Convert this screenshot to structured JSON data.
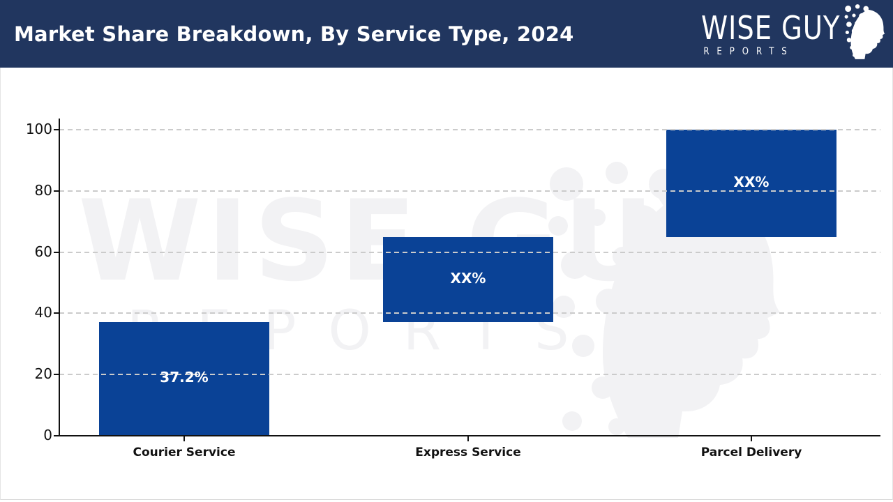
{
  "header": {
    "title": "Market Share Breakdown, By Service Type, 2024",
    "bg_color": "#21365F",
    "logo": {
      "wordmark": "WISE GUY",
      "subtitle": "REPORTS"
    }
  },
  "watermark": {
    "wordmark": "WISE GUY",
    "subtitle": "REPORTS"
  },
  "chart_data": {
    "type": "bar",
    "subtype": "floating-waterfall",
    "title": "Market Share Breakdown, By Service Type, 2024",
    "categories": [
      "Courier Service",
      "Express Service",
      "Parcel Delivery"
    ],
    "bars": [
      {
        "category": "Courier Service",
        "start": 0,
        "end": 37.2,
        "label": "37.2%"
      },
      {
        "category": "Express Service",
        "start": 37.2,
        "end": 65,
        "label": "XX%"
      },
      {
        "category": "Parcel Delivery",
        "start": 65,
        "end": 100,
        "label": "XX%"
      }
    ],
    "xlabel": "",
    "ylabel": "",
    "y_ticks": [
      0,
      20,
      40,
      60,
      80,
      100
    ],
    "ylim": [
      0,
      105
    ],
    "grid": {
      "axis": "y",
      "style": "dashed",
      "color": "#cbcbcb",
      "drawn_over_bars": true
    },
    "legend": "none",
    "colors": {
      "bar": "#0A4296",
      "bar_label_text": "#FFFFFF",
      "axis_text": "#111111",
      "header_bg": "#21365F",
      "watermark": "#F2F2F4"
    }
  }
}
